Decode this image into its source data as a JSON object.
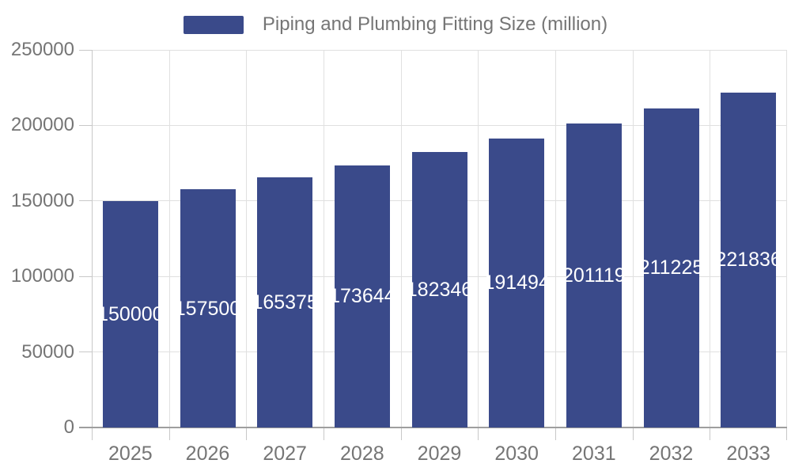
{
  "chart_data": {
    "type": "bar",
    "title": "Piping and Plumbing Fitting Size (million)",
    "categories": [
      "2025",
      "2026",
      "2027",
      "2028",
      "2029",
      "2030",
      "2031",
      "2032",
      "2033"
    ],
    "values": [
      150000,
      157500,
      165375,
      173644,
      182346,
      191494,
      201119,
      211225,
      221836
    ],
    "value_labels": [
      "150000",
      "157500",
      "165375",
      "173644",
      "182346",
      "191494",
      "201119",
      "211225",
      "221836"
    ],
    "xlabel": "",
    "ylabel": "",
    "ylim": [
      0,
      250000
    ],
    "yticks": [
      0,
      50000,
      100000,
      150000,
      200000,
      250000
    ],
    "grid": true,
    "legend_position": "top-center",
    "value_label_position": "inside-middle",
    "colors": {
      "bar": "#3A4A8A",
      "value_label": "#FFFFFF",
      "axis_text": "#757575",
      "gridline": "#E0E0E0",
      "axis_line": "#9E9E9E",
      "tick": "#C8C8C8",
      "background": "#FFFFFF"
    }
  }
}
